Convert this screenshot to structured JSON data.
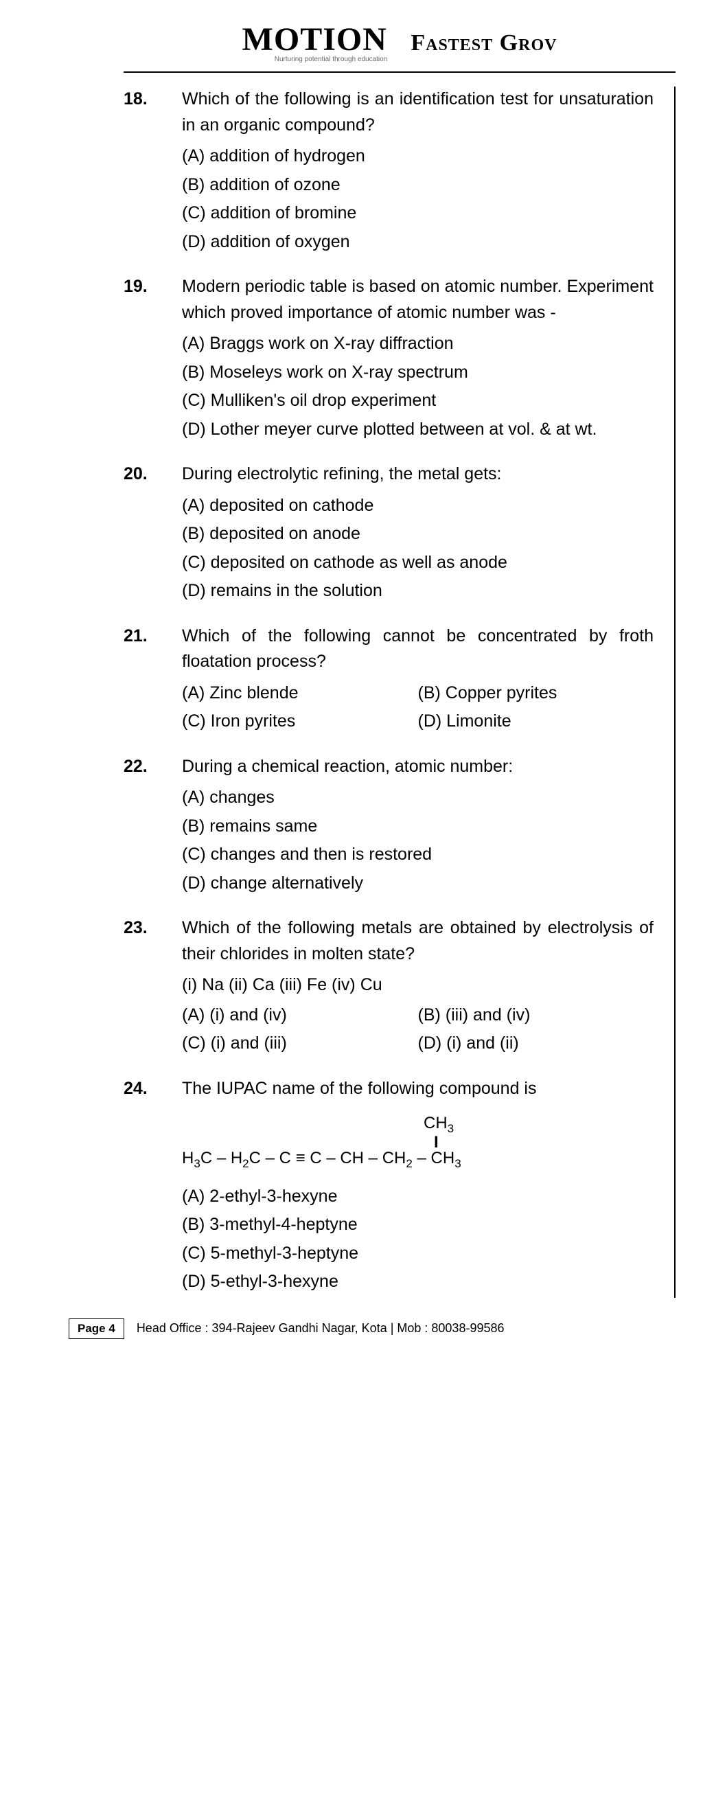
{
  "header": {
    "brand": "MOTION",
    "slogan": "Fastest Grov",
    "tagline": "Nurturing potential through education"
  },
  "questions": [
    {
      "number": "18.",
      "stem": "Which of the following is an identification test for unsaturation in an organic compound?",
      "layout": "block",
      "options": [
        "(A) addition of hydrogen",
        "(B) addition of ozone",
        "(C) addition of bromine",
        "(D) addition of oxygen"
      ]
    },
    {
      "number": "19.",
      "stem": "Modern periodic table is based on atomic number. Experiment which proved importance of atomic number was -",
      "layout": "block",
      "options": [
        "(A) Braggs work on X-ray diffraction",
        "(B) Moseleys work on X-ray spectrum",
        "(C) Mulliken's oil drop experiment",
        "(D) Lother meyer curve plotted between at vol. & at wt."
      ]
    },
    {
      "number": "20.",
      "stem": "During electrolytic refining, the metal gets:",
      "layout": "block",
      "options": [
        "(A) deposited on cathode",
        "(B) deposited on anode",
        "(C) deposited on cathode as well as anode",
        "(D) remains in the solution"
      ]
    },
    {
      "number": "21.",
      "stem": "Which of the following cannot be concentrated by froth floatation process?",
      "layout": "inline",
      "stemSpaced": true,
      "options": [
        "(A) Zinc blende",
        "(B) Copper pyrites",
        "(C) Iron pyrites",
        "(D) Limonite"
      ]
    },
    {
      "number": "22.",
      "stem": "During a chemical reaction, atomic number:",
      "layout": "block",
      "options": [
        "(A) changes",
        "(B) remains same",
        "(C) changes and then is restored",
        "(D) change alternatively"
      ]
    },
    {
      "number": "23.",
      "stem": "Which of the following metals are obtained by electrolysis of their chlorides in molten state?",
      "layout": "inline",
      "sublist": "(i) Na (ii) Ca (iii) Fe (iv) Cu",
      "options": [
        "(A) (i) and (iv)",
        "(B) (iii) and (iv)",
        "(C) (i) and (iii)",
        "(D) (i) and (ii)"
      ]
    },
    {
      "number": "24.",
      "stem": "The IUPAC name of the following compound is",
      "layout": "block",
      "hasFormula": true,
      "options": [
        "(A) 2-ethyl-3-hexyne",
        "(B) 3-methyl-4-heptyne",
        "(C) 5-methyl-3-heptyne",
        "(D) 5-ethyl-3-hexyne"
      ]
    }
  ],
  "formula": {
    "top": "CH₃",
    "bottom_parts": [
      "H₃C – H₂C – C ≡ C – CH – CH₂ – CH₃"
    ]
  },
  "footer": {
    "pageLabel": "Page 4",
    "address": "Head Office : 394-Rajeev Gandhi Nagar, Kota | Mob : 80038-99586"
  }
}
